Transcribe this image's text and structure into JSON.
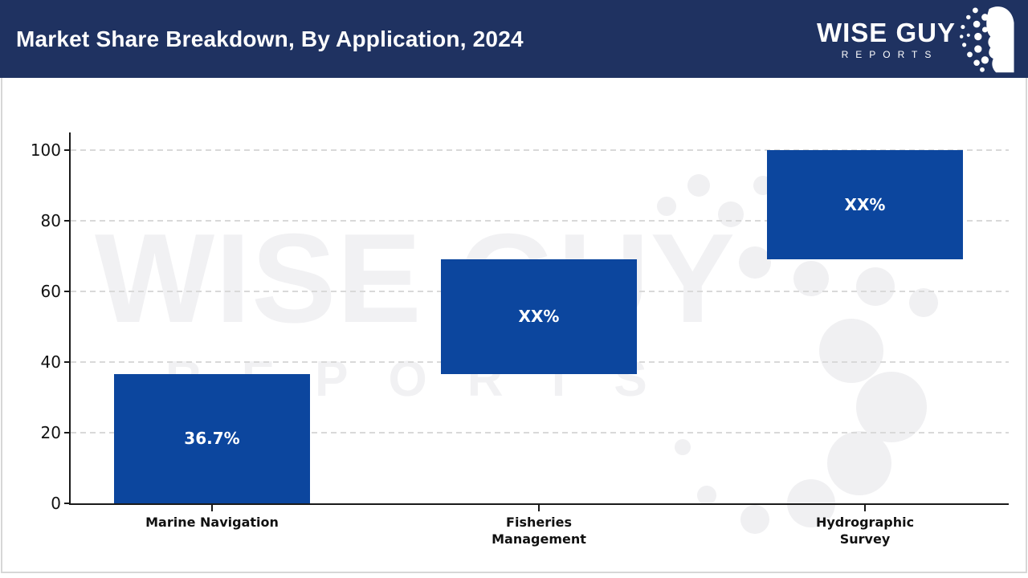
{
  "header": {
    "title": "Market Share Breakdown, By Application, 2024",
    "logo": {
      "primary": "WISE GUY",
      "secondary": "REPORTS"
    }
  },
  "watermark": {
    "primary": "WISE GUY",
    "secondary": "REPORTS"
  },
  "colors": {
    "header_bg": "#1f3261",
    "bar": "#0c469e",
    "bar_label_text": "#ffffff",
    "axis": "#1a1a1a",
    "gridline": "#d9d9d9",
    "tick_text": "#111111",
    "watermark": "#f1f1f3"
  },
  "chart_data": {
    "type": "bar",
    "variant": "floating-waterfall",
    "title": "Market Share Breakdown, By Application, 2024",
    "categories": [
      "Marine Navigation",
      "Fisheries Management",
      "Hydrographic Survey"
    ],
    "category_label_lines": [
      [
        "Marine Navigation"
      ],
      [
        "Fisheries",
        "Management"
      ],
      [
        "Hydrographic",
        "Survey"
      ]
    ],
    "bars": [
      {
        "category": "Marine Navigation",
        "start": 0,
        "end": 36.7,
        "label": "36.7%"
      },
      {
        "category": "Fisheries Management",
        "start": 36.7,
        "end": 69,
        "label": "XX%"
      },
      {
        "category": "Hydrographic Survey",
        "start": 69,
        "end": 100,
        "label": "XX%"
      }
    ],
    "xlabel": "",
    "ylabel": "",
    "ylim": [
      0,
      100
    ],
    "yticks": [
      0,
      20,
      40,
      60,
      80,
      100
    ],
    "grid": {
      "horizontal": true,
      "style": "dashed"
    },
    "legend": "none"
  }
}
